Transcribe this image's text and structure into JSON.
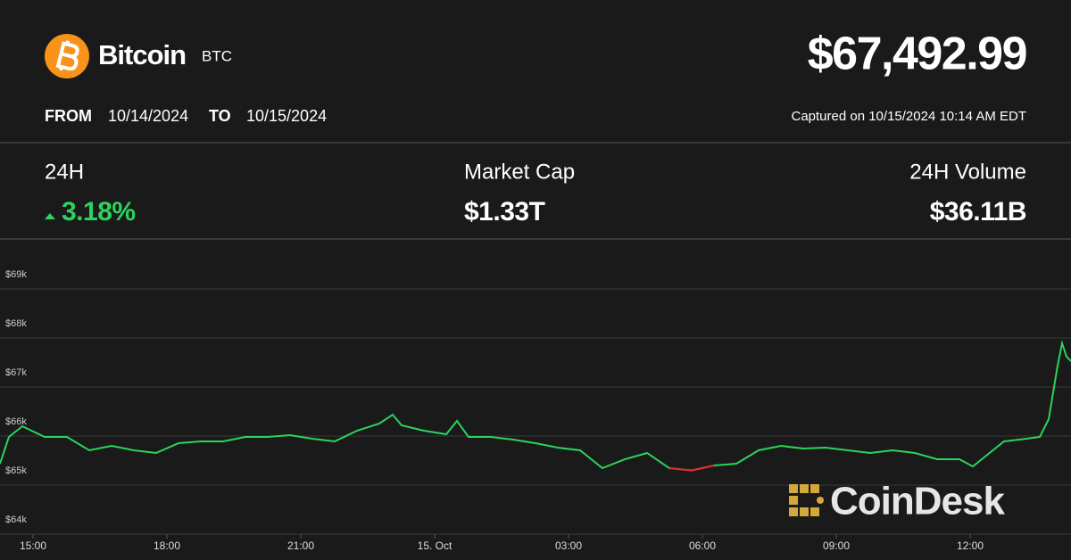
{
  "header": {
    "name": "Bitcoin",
    "symbol": "BTC",
    "price": "$67,492.99",
    "from_label": "FROM",
    "from_date": "10/14/2024",
    "to_label": "TO",
    "to_date": "10/15/2024",
    "captured": "Captured on 10/15/2024 10:14 AM EDT"
  },
  "stats": [
    {
      "label": "24H",
      "value": "3.18%"
    },
    {
      "label": "Market Cap",
      "value": "$1.33T"
    },
    {
      "label": "24H Volume",
      "value": "$36.11B"
    }
  ],
  "watermark": "CoinDesk",
  "chart_data": {
    "type": "line",
    "color": "#2bd35e",
    "down_color": "#e8253b",
    "x": [
      14.26,
      14.46,
      14.76,
      15.26,
      15.76,
      16.26,
      16.76,
      17.26,
      17.76,
      18.26,
      18.76,
      19.26,
      19.76,
      20.26,
      20.76,
      21.26,
      21.76,
      22.26,
      22.76,
      23.06,
      23.26,
      23.76,
      24.26,
      24.5,
      24.76,
      25.26,
      25.76,
      26.26,
      26.76,
      27.26,
      27.76,
      28.26,
      28.76,
      29.26,
      29.76,
      30.26,
      30.76,
      31.26,
      31.76,
      32.26,
      32.76,
      33.26,
      33.76,
      34.26,
      34.76,
      35.26,
      35.76,
      36.06,
      36.26,
      36.76,
      37.26,
      37.56,
      37.76,
      37.96,
      38.06,
      38.16,
      38.26
    ],
    "values": [
      65436,
      65982,
      66200,
      65982,
      65982,
      65709,
      65800,
      65709,
      65655,
      65855,
      65891,
      65891,
      65982,
      65982,
      66018,
      65945,
      65891,
      66109,
      66255,
      66436,
      66218,
      66109,
      66036,
      66309,
      65982,
      65982,
      65927,
      65855,
      65764,
      65709,
      65345,
      65527,
      65655,
      65345,
      65300,
      65400,
      65436,
      65709,
      65800,
      65745,
      65764,
      65709,
      65655,
      65709,
      65655,
      65527,
      65527,
      65380,
      65527,
      65891,
      65945,
      65982,
      66345,
      67436,
      67891,
      67618,
      67527
    ],
    "xlim": [
      14.26,
      38.26
    ],
    "ylim": [
      64000,
      70000
    ],
    "xticks": [
      {
        "value": 15,
        "label": "15:00"
      },
      {
        "value": 18,
        "label": "18:00"
      },
      {
        "value": 21,
        "label": "21:00"
      },
      {
        "value": 24,
        "label": "15. Oct"
      },
      {
        "value": 27,
        "label": "03:00"
      },
      {
        "value": 30,
        "label": "06:00"
      },
      {
        "value": 33,
        "label": "09:00"
      },
      {
        "value": 36,
        "label": "12:00"
      }
    ],
    "yticks": [
      {
        "value": 64000,
        "label": "$64k"
      },
      {
        "value": 65000,
        "label": "$65k"
      },
      {
        "value": 66000,
        "label": "$66k"
      },
      {
        "value": 67000,
        "label": "$67k"
      },
      {
        "value": 68000,
        "label": "$68k"
      },
      {
        "value": 69000,
        "label": "$69k"
      }
    ],
    "grid": true
  }
}
